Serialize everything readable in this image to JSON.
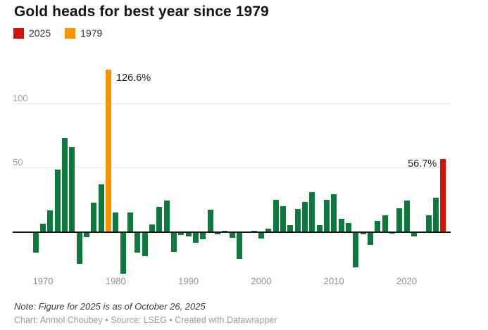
{
  "header": {
    "title": "Gold heads for best year since 1979"
  },
  "legend": {
    "items": [
      {
        "label": "2025",
        "color": "#d6120b"
      },
      {
        "label": "1979",
        "color": "#f89500"
      }
    ]
  },
  "chart_data": {
    "type": "bar",
    "title": "Gold heads for best year since 1979",
    "unit": "%",
    "xlabel": "",
    "ylabel": "",
    "ylim": [
      -35,
      130
    ],
    "grid": "horizontal",
    "y_ticks": [
      50,
      100
    ],
    "x_ticks": [
      1970,
      1980,
      1990,
      2000,
      2010,
      2020
    ],
    "x": [
      1969,
      1970,
      1971,
      1972,
      1973,
      1974,
      1975,
      1976,
      1977,
      1978,
      1979,
      1980,
      1981,
      1982,
      1983,
      1984,
      1985,
      1986,
      1987,
      1988,
      1989,
      1990,
      1991,
      1992,
      1993,
      1994,
      1995,
      1996,
      1997,
      1998,
      1999,
      2000,
      2001,
      2002,
      2003,
      2004,
      2005,
      2006,
      2007,
      2008,
      2009,
      2010,
      2011,
      2012,
      2013,
      2014,
      2015,
      2016,
      2017,
      2018,
      2019,
      2020,
      2021,
      2022,
      2023,
      2024,
      2025
    ],
    "values": [
      -16.0,
      6.2,
      16.7,
      48.7,
      73.5,
      66.1,
      -24.8,
      -4.1,
      22.7,
      37.0,
      126.6,
      15.2,
      -32.6,
      14.9,
      -16.3,
      -19.2,
      5.8,
      19.5,
      24.5,
      -15.7,
      -2.2,
      -3.7,
      -8.6,
      -5.7,
      17.3,
      -1.9,
      1.0,
      -4.6,
      -21.4,
      -0.8,
      0.9,
      -5.4,
      2.5,
      24.8,
      19.9,
      5.5,
      17.8,
      23.2,
      31.1,
      5.5,
      25.0,
      29.5,
      10.1,
      7.0,
      -27.8,
      -1.9,
      -10.4,
      8.5,
      13.1,
      -1.6,
      18.3,
      24.6,
      -3.6,
      -0.3,
      13.1,
      26.6,
      56.7
    ],
    "colors": {
      "default": "#0c7a3c",
      "1979": "#f89500",
      "2025": "#d6120b"
    },
    "annotations": [
      {
        "year": 1979,
        "text": "126.6%"
      },
      {
        "year": 2025,
        "text": "56.7%"
      }
    ],
    "legend_position": "top-left"
  },
  "footer": {
    "note": "Note: Figure for 2025 is as of October 26, 2025",
    "credit": "Chart: Anmol Choubey • Source: LSEG • Created with Datawrapper"
  }
}
